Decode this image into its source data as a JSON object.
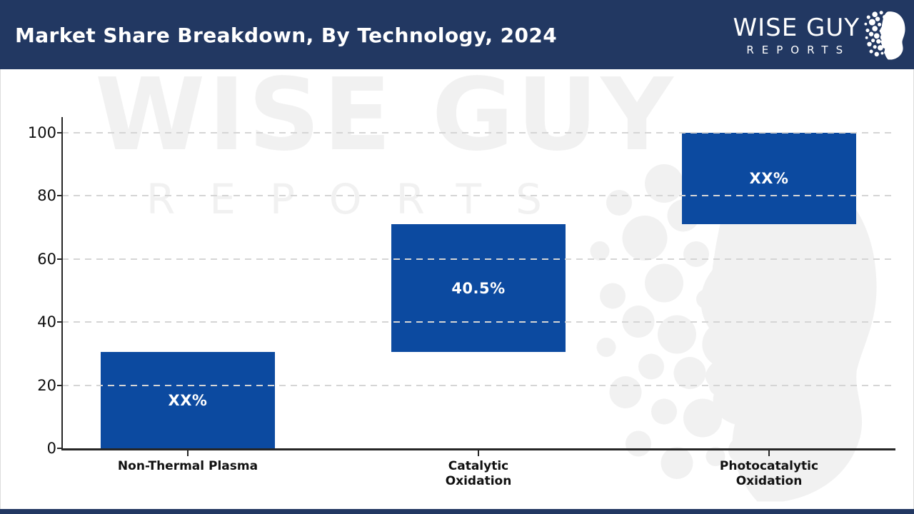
{
  "header": {
    "title": "Market Share Breakdown, By Technology, 2024",
    "logo": {
      "name": "WISE GUY",
      "sub": "REPORTS"
    }
  },
  "watermark": {
    "name": "WISE GUY",
    "sub": "REPORTS"
  },
  "colors": {
    "header_bg": "#223862",
    "footer_bg": "#223862",
    "bar": "#0c4aa0",
    "bar_label": "#ffffff",
    "grid": "#d5d5d5",
    "axis": "#262626",
    "watermark": "#f1f1f1"
  },
  "chart_data": {
    "type": "bar",
    "subtype": "floating-waterfall-segments",
    "title": "Market Share Breakdown, By Technology, 2024",
    "xlabel": "",
    "ylabel": "",
    "categories": [
      "Non-Thermal Plasma",
      "Catalytic\nOxidation",
      "Photocatalytic\nOxidation"
    ],
    "bars": [
      {
        "label": "XX%",
        "start": 0,
        "end": 30.5,
        "value_masked": true
      },
      {
        "label": "40.5%",
        "start": 30.5,
        "end": 71,
        "value": 40.5
      },
      {
        "label": "XX%",
        "start": 71,
        "end": 100,
        "value_masked": true
      }
    ],
    "yticks": [
      0,
      20,
      40,
      60,
      80,
      100
    ],
    "ylim": [
      0,
      107
    ],
    "grid": "horizontal dashed, drawn above bars",
    "legend": "none",
    "bar_color": "#0c4aa0"
  }
}
